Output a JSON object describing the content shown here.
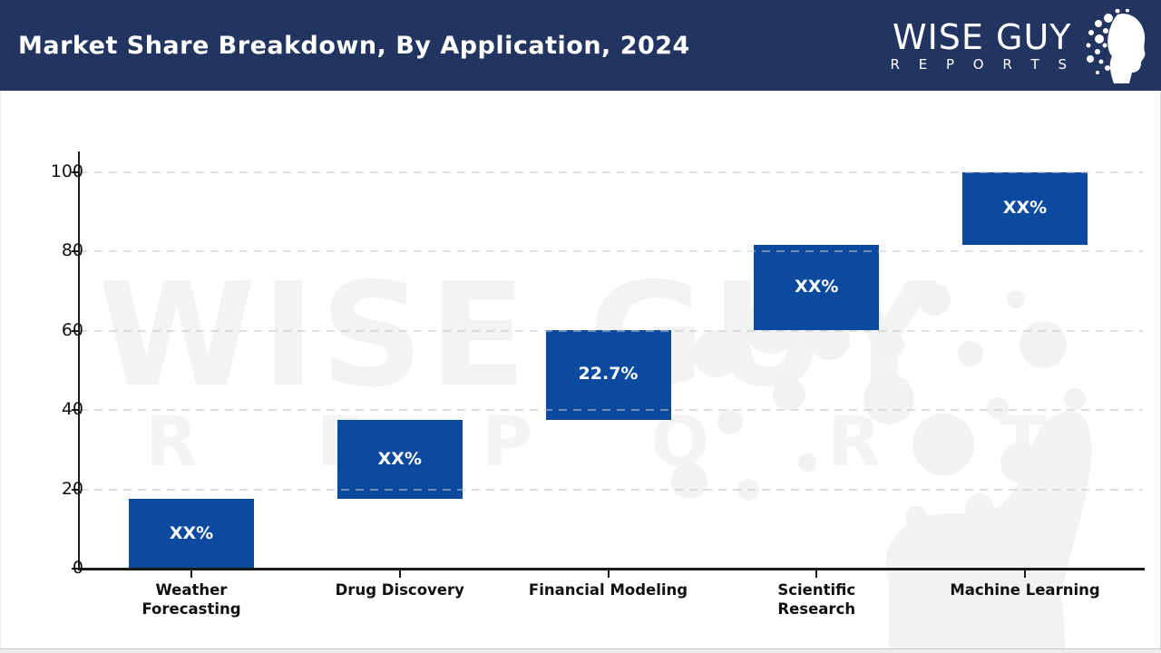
{
  "header": {
    "title": "Market Share Breakdown, By Application, 2024",
    "bg_color": "#223460",
    "logo": {
      "line1": "WISE GUY",
      "line2": "R E P O R T S"
    }
  },
  "watermark": {
    "line1": "WISE GUY",
    "line2": "R E P O R T S"
  },
  "chart_data": {
    "type": "bar",
    "subtype": "waterfall",
    "title": "Market Share Breakdown, By Application, 2024",
    "xlabel": "",
    "ylabel": "",
    "categories": [
      "Weather Forecasting",
      "Drug Discovery",
      "Financial Modeling",
      "Scientific Research",
      "Machine Learning"
    ],
    "segments": [
      {
        "category": "Weather Forecasting",
        "start": 0,
        "end": 17.5,
        "value_label": "XX%"
      },
      {
        "category": "Drug Discovery",
        "start": 17.5,
        "end": 37.5,
        "value_label": "XX%"
      },
      {
        "category": "Financial Modeling",
        "start": 37.5,
        "end": 60.2,
        "value_label": "22.7%"
      },
      {
        "category": "Scientific Research",
        "start": 60.2,
        "end": 81.5,
        "value_label": "XX%"
      },
      {
        "category": "Machine Learning",
        "start": 81.5,
        "end": 100,
        "value_label": "XX%"
      }
    ],
    "yticks": [
      0,
      20,
      40,
      60,
      80,
      100
    ],
    "ylim": [
      0,
      105
    ],
    "bar_color": "#0b4a9e",
    "grid": "horizontal dashed",
    "legend": "none"
  }
}
